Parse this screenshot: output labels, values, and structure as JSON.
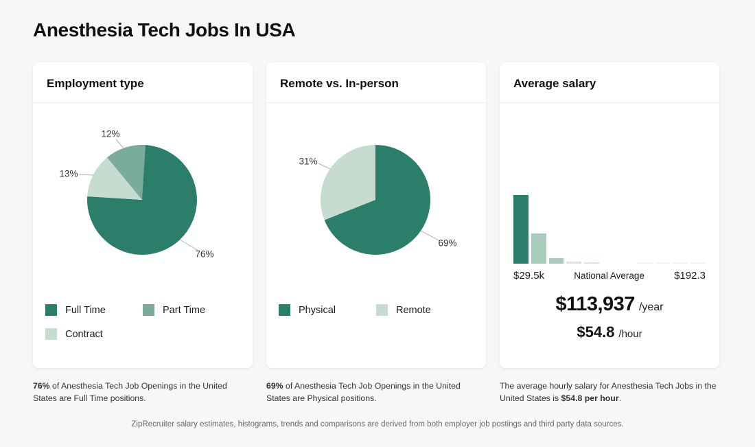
{
  "page": {
    "title": "Anesthesia Tech Jobs In USA",
    "footer": "ZipRecruiter salary estimates, histograms, trends and comparisons are derived from both employer job postings and third party data sources."
  },
  "colors": {
    "dark_green": "#2B7E69",
    "medium_green": "#7AAB9C",
    "light_green": "#C6DCD1",
    "accent_text_green": "#2E9278",
    "page_background": "#f7f7f8",
    "card_background": "#ffffff"
  },
  "chart_data": [
    {
      "type": "pie",
      "title": "Employment type",
      "slices": [
        {
          "label": "Full Time",
          "value": 76,
          "display": "76%",
          "color": "#2B7E69"
        },
        {
          "label": "Contract",
          "value": 13,
          "display": "13%",
          "color": "#C6DCD1"
        },
        {
          "label": "Part Time",
          "value": 12,
          "display": "12%",
          "color": "#7AAB9C"
        }
      ],
      "legend": [
        {
          "label": "Full Time",
          "color": "#2B7E69"
        },
        {
          "label": "Part Time",
          "color": "#7AAB9C"
        },
        {
          "label": "Contract",
          "color": "#C6DCD1"
        }
      ]
    },
    {
      "type": "pie",
      "title": "Remote vs. In-person",
      "slices": [
        {
          "label": "Physical",
          "value": 69,
          "display": "69%",
          "color": "#2B7E69"
        },
        {
          "label": "Remote",
          "value": 31,
          "display": "31%",
          "color": "#C6DCD1"
        }
      ],
      "legend": [
        {
          "label": "Physical",
          "color": "#2B7E69"
        },
        {
          "label": "Remote",
          "color": "#C6DCD1"
        }
      ]
    },
    {
      "type": "histogram",
      "title": "Average salary",
      "x_labels": [
        "$29.5k",
        "National Average",
        "$192.3"
      ],
      "bars": [
        {
          "height_pct": 100,
          "color": "#2B7E69"
        },
        {
          "height_pct": 44,
          "color": "#A8CBBC"
        },
        {
          "height_pct": 8,
          "color": "#A8CBBC"
        },
        {
          "height_pct": 3,
          "color": "#D9E7DF"
        },
        {
          "height_pct": 2,
          "color": "#D9E7DF"
        },
        {
          "height_pct": 0,
          "color": "#EFF4F1"
        },
        {
          "height_pct": 0,
          "color": "#EFF4F1"
        },
        {
          "height_pct": 2,
          "color": "#EFF4F1"
        },
        {
          "height_pct": 2,
          "color": "#EFF4F1"
        },
        {
          "height_pct": 2,
          "color": "#EFF4F1"
        },
        {
          "height_pct": 2,
          "color": "#EFF4F1"
        }
      ]
    }
  ],
  "cards": [
    {
      "title": "Employment type",
      "caption_highlight": "76%",
      "caption_rest": " of Anesthesia Tech Job Openings in the United States are Full Time positions."
    },
    {
      "title": "Remote vs. In-person",
      "caption_highlight": "69%",
      "caption_rest": " of Anesthesia Tech Job Openings in the United States are Physical positions."
    },
    {
      "title": "Average salary",
      "salary_year": "$113,937",
      "salary_year_unit": "/year",
      "salary_hour": "$54.8",
      "salary_hour_unit": "/hour",
      "caption_pre": "The average hourly salary for Anesthesia Tech Jobs in the United States is ",
      "caption_highlight": "$54.8 per hour",
      "caption_post": "."
    }
  ]
}
